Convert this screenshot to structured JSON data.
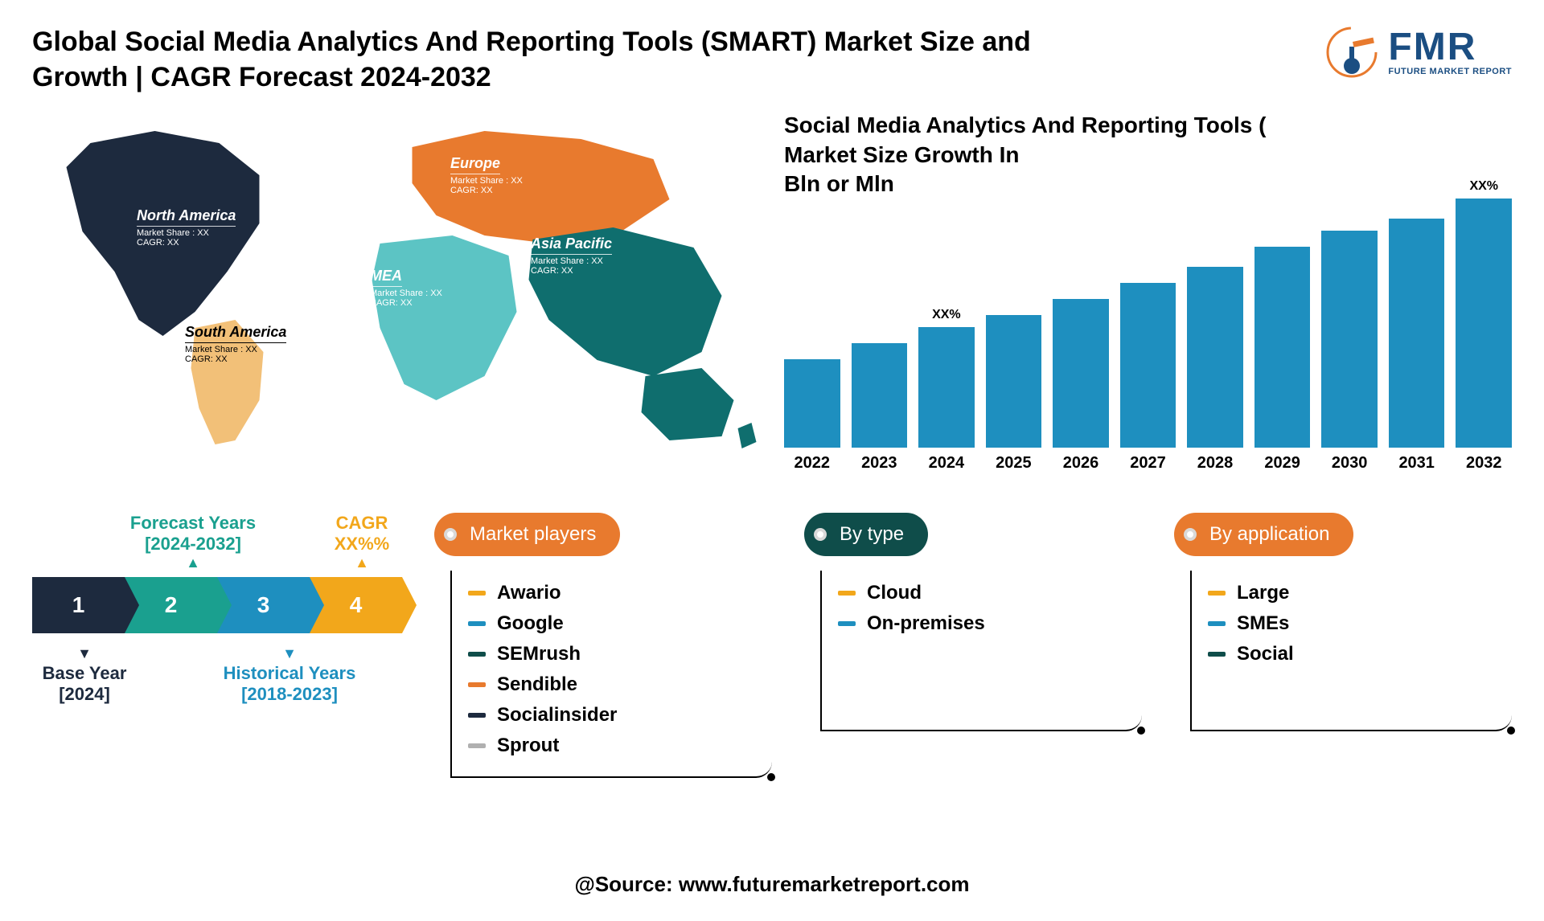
{
  "title": "Global Social Media Analytics And Reporting Tools (SMART) Market Size and Growth | CAGR Forecast 2024-2032",
  "logo": {
    "name": "FMR",
    "sub": "FUTURE MARKET REPORT"
  },
  "map": {
    "regions": [
      {
        "key": "na",
        "name": "North America",
        "share": "Market Share : XX",
        "cagr": "CAGR: XX",
        "color": "#1d2a3e"
      },
      {
        "key": "sa",
        "name": "South America",
        "share": "Market Share : XX",
        "cagr": "CAGR: XX",
        "color": "#f2c078"
      },
      {
        "key": "eu",
        "name": "Europe",
        "share": "Market Share : XX",
        "cagr": "CAGR: XX",
        "color": "#e87a2e"
      },
      {
        "key": "mea",
        "name": "MEA",
        "share": "Market Share : XX",
        "cagr": "CAGR: XX",
        "color": "#5cc4c4"
      },
      {
        "key": "ap",
        "name": "Asia Pacific",
        "share": "Market Share : XX",
        "cagr": "CAGR: XX",
        "color": "#0f6e6e"
      }
    ]
  },
  "chart": {
    "title": "Social Media Analytics And Reporting Tools (\nMarket Size Growth In\nBln or Mln",
    "type": "bar",
    "bar_color": "#1e8fbf",
    "background_color": "#ffffff",
    "label_2024": "XX%",
    "label_2032": "XX%",
    "years": [
      "2022",
      "2023",
      "2024",
      "2025",
      "2026",
      "2027",
      "2028",
      "2029",
      "2030",
      "2031",
      "2032"
    ],
    "heights": [
      110,
      130,
      150,
      165,
      185,
      205,
      225,
      250,
      270,
      285,
      310
    ]
  },
  "timeline": {
    "steps": [
      "1",
      "2",
      "3",
      "4"
    ],
    "step_colors": [
      "#1d2a3e",
      "#1aa08f",
      "#1e8fbf",
      "#f2a71b"
    ],
    "forecast": {
      "label": "Forecast Years",
      "range": "[2024-2032]"
    },
    "cagr": {
      "label": "CAGR",
      "value": "XX%%"
    },
    "base": {
      "label": "Base Year",
      "range": "[2024]"
    },
    "hist": {
      "label": "Historical Years",
      "range": "[2018-2023]"
    }
  },
  "dash_colors": [
    "#f2a71b",
    "#1e8fbf",
    "#0f4d4a",
    "#e87a2e",
    "#1d2a3e",
    "#b0b0b0"
  ],
  "cols": {
    "players": {
      "title": "Market players",
      "pill": "orange",
      "items": [
        "Awario",
        "Google",
        "SEMrush",
        "Sendible",
        "Socialinsider",
        "Sprout"
      ]
    },
    "type": {
      "title": "By type",
      "pill": "teal",
      "items": [
        "Cloud",
        "On-premises"
      ]
    },
    "app": {
      "title": "By application",
      "pill": "orange",
      "items": [
        "Large",
        "SMEs",
        "Social"
      ]
    }
  },
  "source": "@Source: www.futuremarketreport.com"
}
